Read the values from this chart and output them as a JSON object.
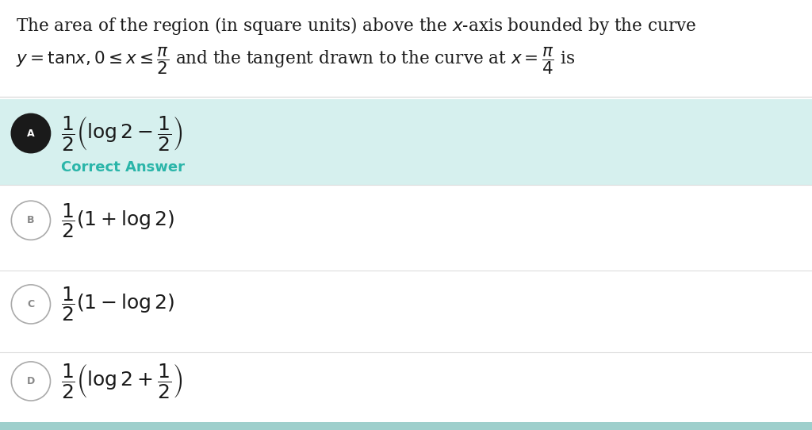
{
  "title_line1": "The area of the region (in square units) above the $x$-axis bounded by the curve",
  "title_line2": "$y = \\mathrm{tan}x, 0 \\leq x \\leq \\dfrac{\\pi}{2}$ and the tangent drawn to the curve at $x = \\dfrac{\\pi}{4}$ is",
  "options": [
    {
      "label": "A",
      "text": "$\\dfrac{1}{2}\\left(\\log 2 - \\dfrac{1}{2}\\right)$",
      "correct": true
    },
    {
      "label": "B",
      "text": "$\\dfrac{1}{2}\\left(1 + \\log 2\\right)$",
      "correct": false
    },
    {
      "label": "C",
      "text": "$\\dfrac{1}{2}\\left(1 - \\log 2\\right)$",
      "correct": false
    },
    {
      "label": "D",
      "text": "$\\dfrac{1}{2}\\left(\\log 2 + \\dfrac{1}{2}\\right)$",
      "correct": false
    }
  ],
  "correct_answer_text": "Correct Answer",
  "correct_answer_color": "#2ab5a9",
  "correct_bg_color": "#d6f0ee",
  "background_color": "#ffffff",
  "bottom_bar_color": "#9ecfcc",
  "circle_bg_correct": "#1a1a1a",
  "circle_bg_incorrect": "#ffffff",
  "circle_border_incorrect": "#aaaaaa",
  "option_label_color_correct": "#ffffff",
  "option_label_color_incorrect": "#888888",
  "divider_color": "#dddddd",
  "text_color": "#1a1a1a",
  "title_fontsize": 15.5,
  "option_fontsize": 18,
  "correct_answer_fontsize": 13
}
